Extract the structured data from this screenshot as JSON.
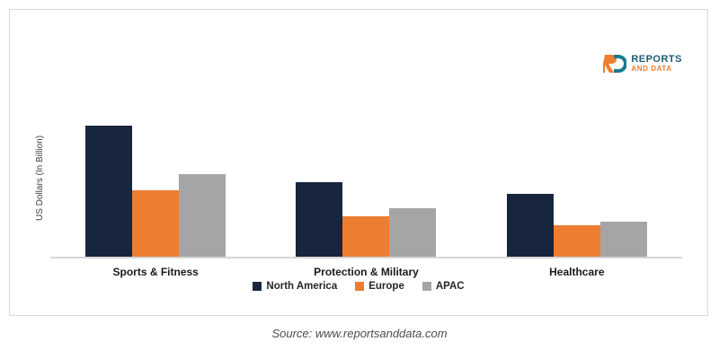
{
  "chart_data": {
    "type": "bar",
    "title": "",
    "categories": [
      "Sports & Fitness",
      "Protection & Military",
      "Healthcare"
    ],
    "series": [
      {
        "name": "North America",
        "color": "#17263d",
        "values": [
          100,
          57,
          48
        ]
      },
      {
        "name": "Europe",
        "color": "#ed7d31",
        "values": [
          51,
          31,
          24
        ]
      },
      {
        "name": "APAC",
        "color": "#a5a5a5",
        "values": [
          63,
          37,
          27
        ]
      }
    ],
    "xlabel": "",
    "ylabel": "US Dollars  (In Billion)",
    "ylim": [
      0,
      120
    ],
    "grid": false,
    "legend_position": "bottom"
  },
  "logo": {
    "mark_letter_r": "R",
    "mark_letter_d": "D",
    "line1": "REPORTS",
    "line2": "AND DATA",
    "mark_orange": "#ef7d30",
    "mark_teal": "#1b7a8c"
  },
  "source": "Source: www.reportsanddata.com",
  "colors": {
    "axis_line": "#d6d6d6",
    "card_border": "#d9d9d9"
  }
}
